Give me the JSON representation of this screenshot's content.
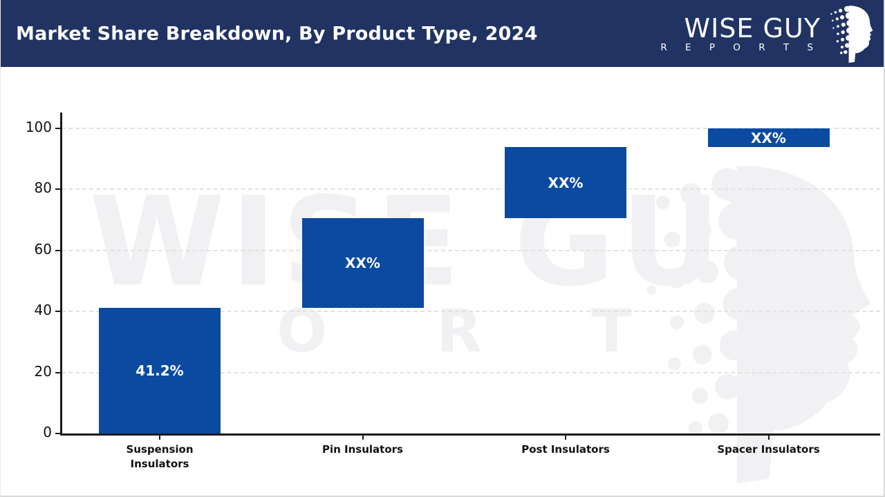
{
  "header": {
    "title": "Market Share Breakdown, By Product Type, 2024",
    "bg_color": "#203363",
    "logo": {
      "line1": "WISE GUY",
      "line2": "R E P O R T S"
    }
  },
  "watermark": {
    "line1": "WISE GUY",
    "line2": "P O R T S"
  },
  "chart_data": {
    "type": "bar",
    "subtype": "waterfall",
    "title": "Market Share Breakdown, By Product Type, 2024",
    "categories": [
      "Suspension\nInsulators",
      "Pin Insulators",
      "Post Insulators",
      "Spacer Insulators"
    ],
    "segments": [
      {
        "category": "Suspension Insulators",
        "start": 0,
        "end": 41.2,
        "label": "41.2%"
      },
      {
        "category": "Pin Insulators",
        "start": 41.2,
        "end": 70.5,
        "label": "XX%"
      },
      {
        "category": "Post Insulators",
        "start": 70.5,
        "end": 93.8,
        "label": "XX%"
      },
      {
        "category": "Spacer Insulators",
        "start": 93.8,
        "end": 100,
        "label": "XX%"
      }
    ],
    "yticks": [
      0,
      20,
      40,
      60,
      80,
      100
    ],
    "ylim": [
      0,
      105
    ],
    "xlabel": "",
    "ylabel": "",
    "grid": "horizontal-dashed",
    "legend": "none",
    "bar_color": "#0b4aa1",
    "bar_label_color": "#ffffff",
    "axis_color": "#1a1a1a"
  }
}
